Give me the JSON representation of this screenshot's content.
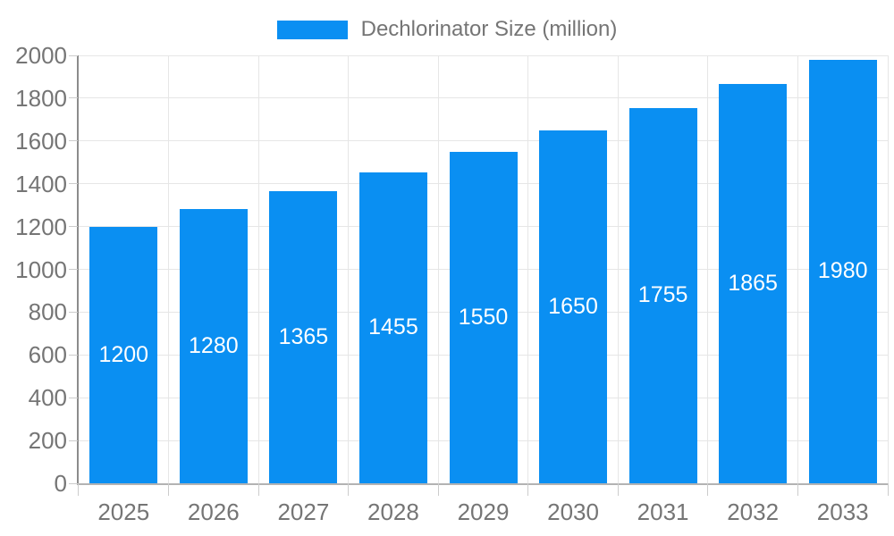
{
  "chart_data": {
    "type": "bar",
    "title": "",
    "legend_label": "Dechlorinator Size (million)",
    "legend_position": "top",
    "categories": [
      "2025",
      "2026",
      "2027",
      "2028",
      "2029",
      "2030",
      "2031",
      "2032",
      "2033"
    ],
    "series": [
      {
        "name": "Dechlorinator Size (million)",
        "values": [
          1200,
          1280,
          1365,
          1455,
          1550,
          1650,
          1755,
          1865,
          1980
        ]
      }
    ],
    "value_labels_shown": true,
    "xlabel": "",
    "ylabel": "",
    "ylim": [
      0,
      2000
    ],
    "yticks": [
      0,
      200,
      400,
      600,
      800,
      1000,
      1200,
      1400,
      1600,
      1800,
      2000
    ],
    "grid": true,
    "colors": {
      "bar": "#0a8ff2",
      "value_label": "#ffffff",
      "axis_text": "#757575",
      "legend_text": "#757575",
      "gridline": "#e6e6e6",
      "y_axis_line": "#8c8c8c",
      "x_axis_line": "#b3b3b3",
      "tick": "#cccccc",
      "background": "#ffffff"
    }
  }
}
